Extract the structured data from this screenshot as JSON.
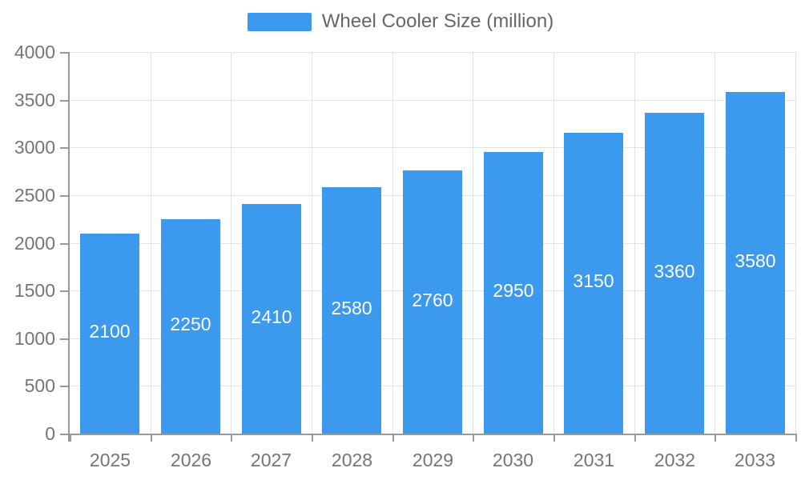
{
  "chart_data": {
    "type": "bar",
    "title": "Wheel Cooler Size (million)",
    "series": [
      {
        "name": "Wheel Cooler Size (million)",
        "values": [
          2100,
          2250,
          2410,
          2580,
          2760,
          2950,
          3150,
          3360,
          3580
        ]
      }
    ],
    "categories": [
      "2025",
      "2026",
      "2027",
      "2028",
      "2029",
      "2030",
      "2031",
      "2032",
      "2033"
    ],
    "xlabel": "",
    "ylabel": "",
    "ylim": [
      0,
      4000
    ],
    "ytick_step": 500,
    "grid": "horizontal-and-vertical",
    "legend_position": "top-center",
    "bar_label_position": "inside-center",
    "colors": {
      "bar": "#3B99EE",
      "bar_label": "#FFFFFF",
      "axis_line": "#999999",
      "grid_line": "#E3E3E3",
      "tick_label": "#757575",
      "legend_text": "#666666",
      "background": "#FFFFFF"
    }
  }
}
